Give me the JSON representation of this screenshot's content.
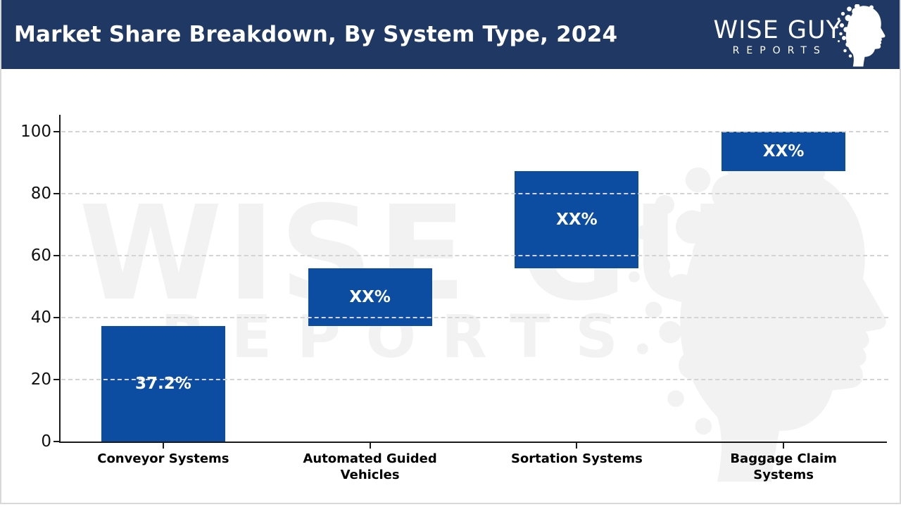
{
  "header": {
    "title": "Market Share Breakdown, By System Type, 2024",
    "logo": {
      "wordmark": "WISE GUY",
      "subtext": "REPORTS"
    }
  },
  "watermark": {
    "wordmark": "WISE GUY",
    "subtext": "REPORTS"
  },
  "colors": {
    "header_bg": "#1f3864",
    "header_text": "#ffffff",
    "bar": "#0d4da1",
    "bar_label": "#ffffff",
    "axis": "#1a1a1a",
    "grid": "#d4d4d4",
    "tick_text": "#111111",
    "watermark": "#f2f2f2",
    "frame_border": "#d8d8d8"
  },
  "chart_data": {
    "type": "bar",
    "subtype": "waterfall",
    "title": "Market Share Breakdown, By System Type, 2024",
    "categories": [
      "Conveyor Systems",
      "Automated Guided\nVehicles",
      "Sortation Systems",
      "Baggage Claim\nSystems"
    ],
    "segments": [
      {
        "category": "Conveyor Systems",
        "start": 0,
        "end": 37.2,
        "label": "37.2%"
      },
      {
        "category": "Automated Guided Vehicles",
        "start": 37.2,
        "end": 55.9,
        "label": "XX%"
      },
      {
        "category": "Sortation Systems",
        "start": 55.9,
        "end": 87.2,
        "label": "XX%"
      },
      {
        "category": "Baggage Claim Systems",
        "start": 87.2,
        "end": 100.0,
        "label": "XX%"
      }
    ],
    "ylim": [
      0,
      100
    ],
    "yticks": [
      0,
      20,
      40,
      60,
      80,
      100
    ],
    "xlabel": "",
    "ylabel": "",
    "grid": "horizontal-dashed",
    "legend": "none",
    "bar_color": "#0d4da1",
    "bar_label_color": "#ffffff"
  }
}
